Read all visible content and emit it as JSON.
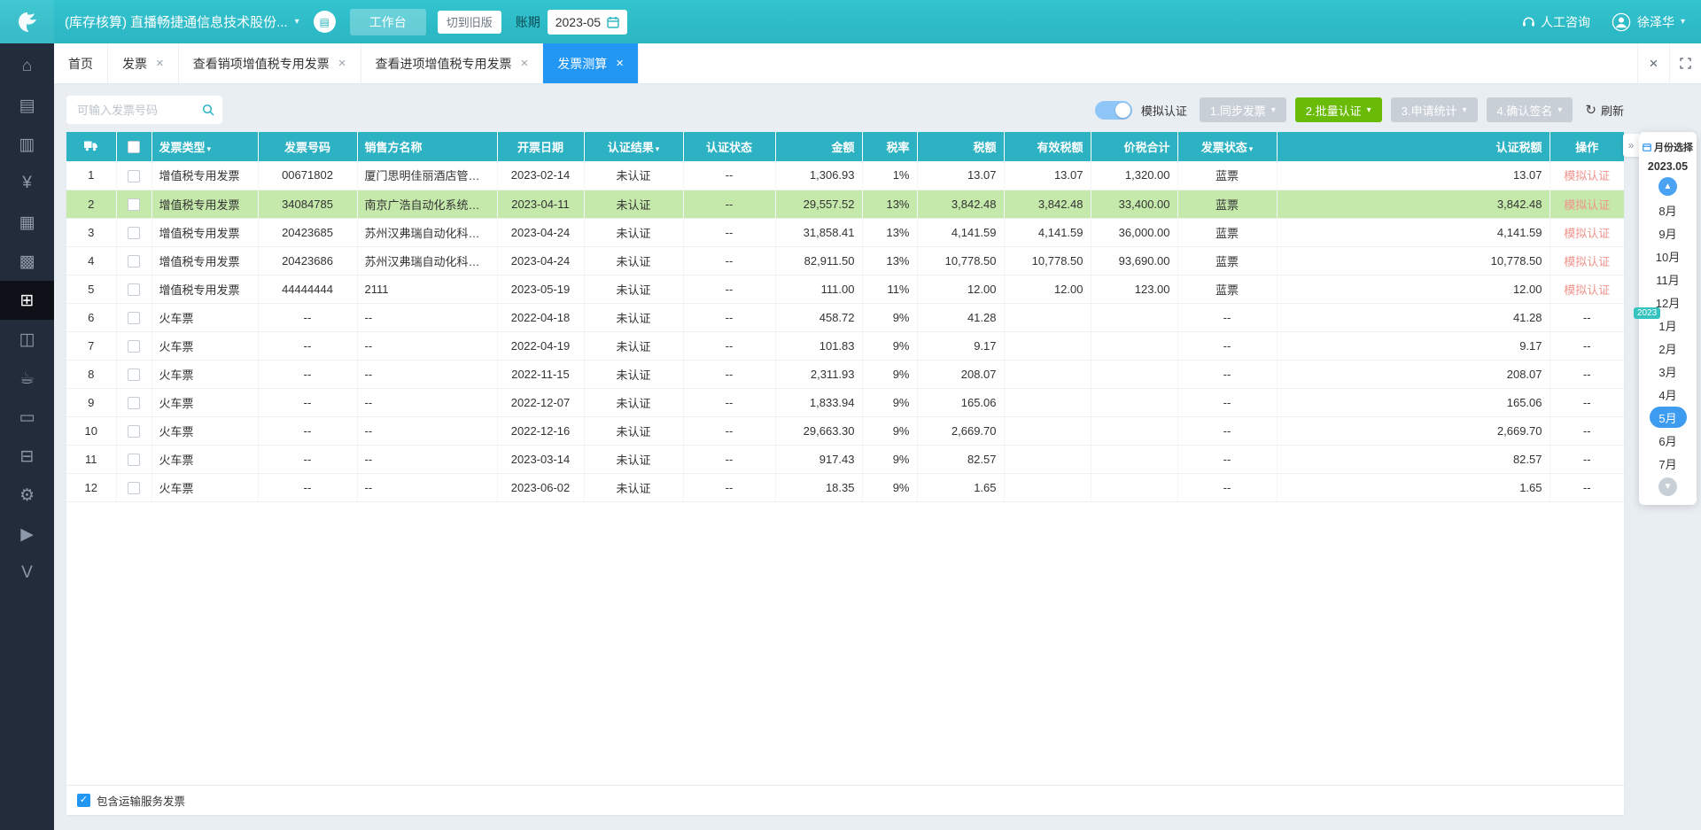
{
  "topbar": {
    "company_selector": "(库存核算) 直播畅捷通信息技术股份...",
    "workbench_button": "工作台",
    "switch_version_button": "切到旧版",
    "period_label": "账期",
    "period_value": "2023-05",
    "consult_label": "人工咨询",
    "user_name": "徐泽华"
  },
  "sidebar": {
    "items": [
      {
        "id": "home",
        "glyph": "⌂",
        "active": false
      },
      {
        "id": "bills",
        "glyph": "▤",
        "active": false
      },
      {
        "id": "reports",
        "glyph": "▥",
        "active": false
      },
      {
        "id": "funds",
        "glyph": "¥",
        "active": false
      },
      {
        "id": "assets",
        "glyph": "▦",
        "active": false
      },
      {
        "id": "modules",
        "glyph": "▩",
        "active": false
      },
      {
        "id": "purchase",
        "glyph": "⊞",
        "active": true
      },
      {
        "id": "production",
        "glyph": "◫",
        "active": false
      },
      {
        "id": "service",
        "glyph": "☕",
        "active": false
      },
      {
        "id": "vouchers",
        "glyph": "▭",
        "active": false
      },
      {
        "id": "inventory",
        "glyph": "⊟",
        "active": false
      },
      {
        "id": "settings",
        "glyph": "⚙",
        "active": false
      },
      {
        "id": "media",
        "glyph": "▶",
        "active": false
      },
      {
        "id": "brand",
        "glyph": "V",
        "active": false
      }
    ]
  },
  "tabs": {
    "items": [
      {
        "id": "home",
        "label": "首页",
        "closable": false,
        "active": false
      },
      {
        "id": "invoice",
        "label": "发票",
        "closable": true,
        "active": false
      },
      {
        "id": "view-output-vat-invoice",
        "label": "查看销项增值税专用发票",
        "closable": true,
        "active": false
      },
      {
        "id": "view-input-vat-invoice",
        "label": "查看进项增值税专用发票",
        "closable": true,
        "active": false
      },
      {
        "id": "invoice-calculation",
        "label": "发票测算",
        "closable": true,
        "active": true
      }
    ]
  },
  "toolbar": {
    "search_placeholder": "可输入发票号码",
    "simulate_toggle_label": "模拟认证",
    "simulate_toggle_on": true,
    "action_buttons": [
      {
        "id": "sync-invoice",
        "label": "1.同步发票",
        "variant": "grey"
      },
      {
        "id": "batch-auth",
        "label": "2.批量认证",
        "variant": "green"
      },
      {
        "id": "apply-statistics",
        "label": "3.申请统计",
        "variant": "grey"
      },
      {
        "id": "confirm-sign",
        "label": "4.确认签名",
        "variant": "grey"
      }
    ],
    "refresh_label": "刷新"
  },
  "table": {
    "columns": [
      {
        "key": "row-number",
        "icon": "truck",
        "label": ""
      },
      {
        "key": "select",
        "icon": "checkbox",
        "label": ""
      },
      {
        "key": "invoice-type",
        "label": "发票类型",
        "sortable": true
      },
      {
        "key": "invoice-number",
        "label": "发票号码"
      },
      {
        "key": "seller-name",
        "label": "销售方名称"
      },
      {
        "key": "invoice-date",
        "label": "开票日期"
      },
      {
        "key": "auth-result",
        "label": "认证结果",
        "sortable": true
      },
      {
        "key": "auth-status",
        "label": "认证状态"
      },
      {
        "key": "amount",
        "label": "金额"
      },
      {
        "key": "tax-rate",
        "label": "税率"
      },
      {
        "key": "tax",
        "label": "税额"
      },
      {
        "key": "valid-tax",
        "label": "有效税额"
      },
      {
        "key": "total-with-tax",
        "label": "价税合计"
      },
      {
        "key": "invoice-status",
        "label": "发票状态",
        "sortable": true
      },
      {
        "key": "auth-tax",
        "label": "认证税额"
      },
      {
        "key": "operation",
        "label": "操作"
      }
    ],
    "rows": [
      {
        "num": "1",
        "type": "增值税专用发票",
        "number": "00671802",
        "seller": "厦门思明佳丽酒店管理有限…",
        "date": "2023-02-14",
        "result": "未认证",
        "status": "--",
        "amount": "1,306.93",
        "rate": "1%",
        "tax": "13.07",
        "valid_tax": "13.07",
        "total": "1,320.00",
        "invoice_status": "蓝票",
        "auth_tax": "13.07",
        "operation": "模拟认证",
        "highlight": false
      },
      {
        "num": "2",
        "type": "增值税专用发票",
        "number": "34084785",
        "seller": "南京广浩自动化系统有限责…",
        "date": "2023-04-11",
        "result": "未认证",
        "status": "--",
        "amount": "29,557.52",
        "rate": "13%",
        "tax": "3,842.48",
        "valid_tax": "3,842.48",
        "total": "33,400.00",
        "invoice_status": "蓝票",
        "auth_tax": "3,842.48",
        "operation": "模拟认证",
        "highlight": true
      },
      {
        "num": "3",
        "type": "增值税专用发票",
        "number": "20423685",
        "seller": "苏州汉弗瑞自动化科技有限…",
        "date": "2023-04-24",
        "result": "未认证",
        "status": "--",
        "amount": "31,858.41",
        "rate": "13%",
        "tax": "4,141.59",
        "valid_tax": "4,141.59",
        "total": "36,000.00",
        "invoice_status": "蓝票",
        "auth_tax": "4,141.59",
        "operation": "模拟认证",
        "highlight": false
      },
      {
        "num": "4",
        "type": "增值税专用发票",
        "number": "20423686",
        "seller": "苏州汉弗瑞自动化科技有限…",
        "date": "2023-04-24",
        "result": "未认证",
        "status": "--",
        "amount": "82,911.50",
        "rate": "13%",
        "tax": "10,778.50",
        "valid_tax": "10,778.50",
        "total": "93,690.00",
        "invoice_status": "蓝票",
        "auth_tax": "10,778.50",
        "operation": "模拟认证",
        "highlight": false
      },
      {
        "num": "5",
        "type": "增值税专用发票",
        "number": "44444444",
        "seller": "2111",
        "date": "2023-05-19",
        "result": "未认证",
        "status": "--",
        "amount": "111.00",
        "rate": "11%",
        "tax": "12.00",
        "valid_tax": "12.00",
        "total": "123.00",
        "invoice_status": "蓝票",
        "auth_tax": "12.00",
        "operation": "模拟认证",
        "highlight": false
      },
      {
        "num": "6",
        "type": "火车票",
        "number": "--",
        "seller": "--",
        "date": "2022-04-18",
        "result": "未认证",
        "status": "--",
        "amount": "458.72",
        "rate": "9%",
        "tax": "41.28",
        "valid_tax": "",
        "total": "",
        "invoice_status": "--",
        "auth_tax": "41.28",
        "operation": "--",
        "highlight": false
      },
      {
        "num": "7",
        "type": "火车票",
        "number": "--",
        "seller": "--",
        "date": "2022-04-19",
        "result": "未认证",
        "status": "--",
        "amount": "101.83",
        "rate": "9%",
        "tax": "9.17",
        "valid_tax": "",
        "total": "",
        "invoice_status": "--",
        "auth_tax": "9.17",
        "operation": "--",
        "highlight": false
      },
      {
        "num": "8",
        "type": "火车票",
        "number": "--",
        "seller": "--",
        "date": "2022-11-15",
        "result": "未认证",
        "status": "--",
        "amount": "2,311.93",
        "rate": "9%",
        "tax": "208.07",
        "valid_tax": "",
        "total": "",
        "invoice_status": "--",
        "auth_tax": "208.07",
        "operation": "--",
        "highlight": false
      },
      {
        "num": "9",
        "type": "火车票",
        "number": "--",
        "seller": "--",
        "date": "2022-12-07",
        "result": "未认证",
        "status": "--",
        "amount": "1,833.94",
        "rate": "9%",
        "tax": "165.06",
        "valid_tax": "",
        "total": "",
        "invoice_status": "--",
        "auth_tax": "165.06",
        "operation": "--",
        "highlight": false
      },
      {
        "num": "10",
        "type": "火车票",
        "number": "--",
        "seller": "--",
        "date": "2022-12-16",
        "result": "未认证",
        "status": "--",
        "amount": "29,663.30",
        "rate": "9%",
        "tax": "2,669.70",
        "valid_tax": "",
        "total": "",
        "invoice_status": "--",
        "auth_tax": "2,669.70",
        "operation": "--",
        "highlight": false
      },
      {
        "num": "11",
        "type": "火车票",
        "number": "--",
        "seller": "--",
        "date": "2023-03-14",
        "result": "未认证",
        "status": "--",
        "amount": "917.43",
        "rate": "9%",
        "tax": "82.57",
        "valid_tax": "",
        "total": "",
        "invoice_status": "--",
        "auth_tax": "82.57",
        "operation": "--",
        "highlight": false
      },
      {
        "num": "12",
        "type": "火车票",
        "number": "--",
        "seller": "--",
        "date": "2023-06-02",
        "result": "未认证",
        "status": "--",
        "amount": "18.35",
        "rate": "9%",
        "tax": "1.65",
        "valid_tax": "",
        "total": "",
        "invoice_status": "--",
        "auth_tax": "1.65",
        "operation": "--",
        "highlight": false
      }
    ]
  },
  "month_panel": {
    "title": "月份选择",
    "current_period": "2023.05",
    "selected_month": "5月",
    "year_badge": "2023",
    "months": [
      {
        "label": "8月"
      },
      {
        "label": "9月"
      },
      {
        "label": "10月"
      },
      {
        "label": "11月"
      },
      {
        "label": "12月"
      },
      {
        "label": "1月",
        "year_badge": "2023"
      },
      {
        "label": "2月"
      },
      {
        "label": "3月"
      },
      {
        "label": "4月"
      },
      {
        "label": "5月",
        "selected": true
      },
      {
        "label": "6月"
      },
      {
        "label": "7月"
      }
    ]
  },
  "footer": {
    "transport_checkbox_label": "包含运输服务发票",
    "transport_checkbox_checked": true
  },
  "colors": {
    "topbar_teal": "#2bb9c6",
    "table_header_teal": "#2db2c4",
    "active_tab_blue": "#2196f3",
    "batch_auth_green": "#69bb07",
    "highlight_row_green": "#c5e8ab",
    "unauthenticated_red": "#e0514a",
    "simulate_link_pink": "#f0938c",
    "selected_month_blue": "#3d9bf0"
  }
}
